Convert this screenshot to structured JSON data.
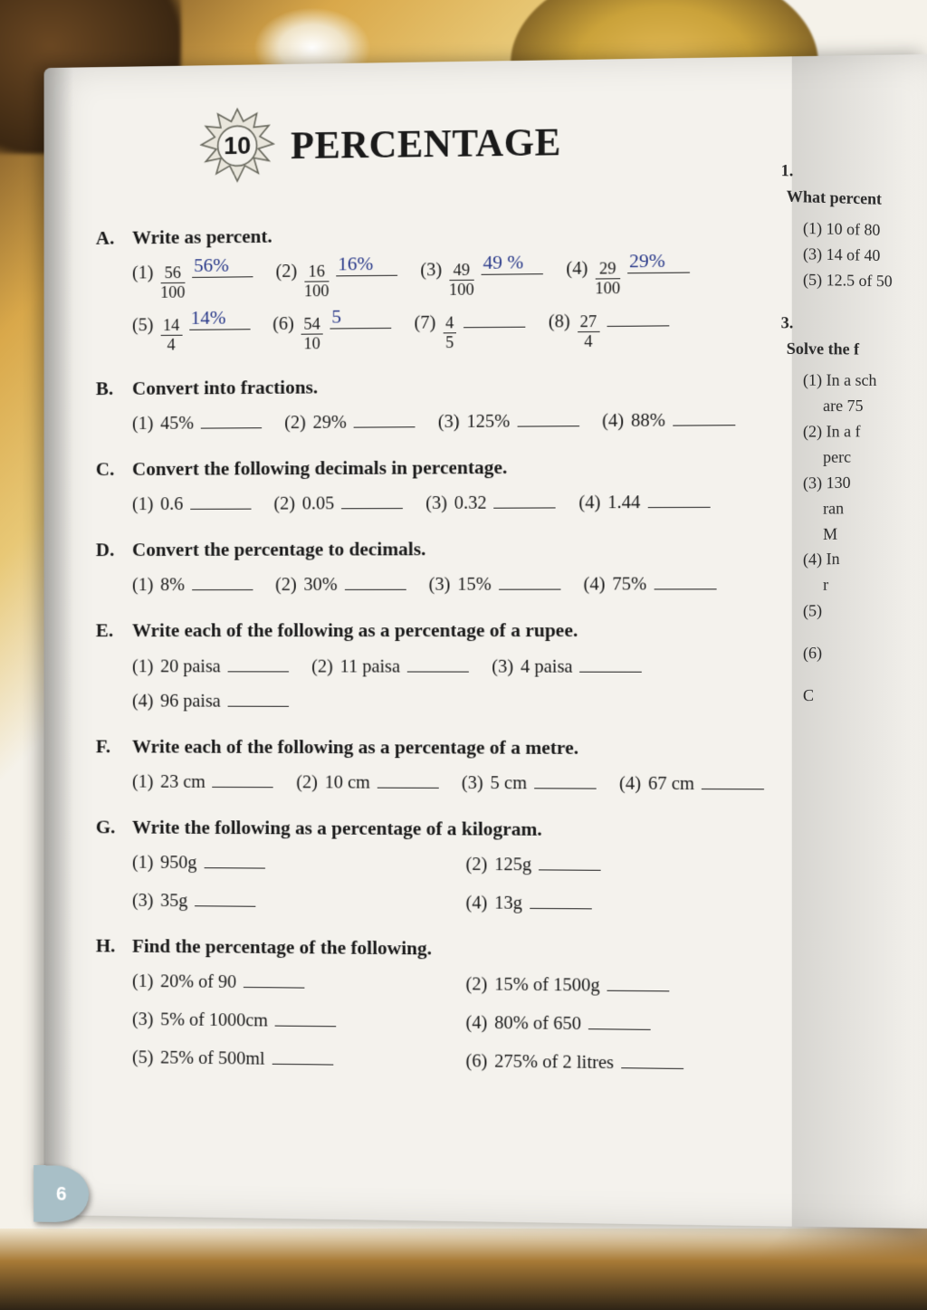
{
  "colors": {
    "paper": "#f4f2ed",
    "ink": "#1a1a1a",
    "handwriting": "#2a3a8a",
    "badge_fill": "#e9e6dc",
    "badge_stroke": "#6b6b60",
    "tab": "#a8bfc7"
  },
  "header": {
    "chapter_number": "10",
    "title": "PERCENTAGE"
  },
  "page_number": "6",
  "right_page": {
    "q1": {
      "title": "What percent",
      "opts": [
        "(1) 10 of 80",
        "(3) 14 of 40",
        "(5) 12.5 of 50"
      ]
    },
    "q3": {
      "title": "Solve the f",
      "opts": [
        "(1) In a sch",
        "are 75",
        "(2) In a f",
        "perc",
        "(3) 130",
        "ran",
        "M",
        "(4) In",
        "r",
        "(5)",
        "(6)",
        "C"
      ]
    }
  },
  "sections": {
    "A": {
      "title": "Write as percent.",
      "items": [
        {
          "n": "(1)",
          "frac": {
            "t": "56",
            "b": "100"
          },
          "hand": "56%"
        },
        {
          "n": "(2)",
          "frac": {
            "t": "16",
            "b": "100"
          },
          "hand": "16%"
        },
        {
          "n": "(3)",
          "frac": {
            "t": "49",
            "b": "100"
          },
          "hand": "49 %"
        },
        {
          "n": "(4)",
          "frac": {
            "t": "29",
            "b": "100"
          },
          "hand": "29%"
        },
        {
          "n": "(5)",
          "frac": {
            "t": "14",
            "b": "4"
          },
          "hand": "14%"
        },
        {
          "n": "(6)",
          "frac": {
            "t": "54",
            "b": "10"
          },
          "hand": "5"
        },
        {
          "n": "(7)",
          "frac": {
            "t": "4",
            "b": "5"
          },
          "hand": ""
        },
        {
          "n": "(8)",
          "frac": {
            "t": "27",
            "b": "4"
          },
          "hand": ""
        }
      ]
    },
    "B": {
      "title": "Convert into fractions.",
      "items": [
        {
          "n": "(1)",
          "text": "45%"
        },
        {
          "n": "(2)",
          "text": "29%"
        },
        {
          "n": "(3)",
          "text": "125%"
        },
        {
          "n": "(4)",
          "text": "88%"
        }
      ]
    },
    "C": {
      "title": "Convert the following decimals in percentage.",
      "items": [
        {
          "n": "(1)",
          "text": "0.6"
        },
        {
          "n": "(2)",
          "text": "0.05"
        },
        {
          "n": "(3)",
          "text": "0.32"
        },
        {
          "n": "(4)",
          "text": "1.44"
        }
      ]
    },
    "D": {
      "title": "Convert the percentage to decimals.",
      "items": [
        {
          "n": "(1)",
          "text": "8%"
        },
        {
          "n": "(2)",
          "text": "30%"
        },
        {
          "n": "(3)",
          "text": "15%"
        },
        {
          "n": "(4)",
          "text": "75%"
        }
      ]
    },
    "E": {
      "title": "Write each of the following as a percentage of a rupee.",
      "items": [
        {
          "n": "(1)",
          "text": "20 paisa"
        },
        {
          "n": "(2)",
          "text": "11 paisa"
        },
        {
          "n": "(3)",
          "text": "4 paisa"
        },
        {
          "n": "(4)",
          "text": "96 paisa"
        }
      ]
    },
    "F": {
      "title": "Write each of the following as a percentage of a metre.",
      "items": [
        {
          "n": "(1)",
          "text": "23 cm"
        },
        {
          "n": "(2)",
          "text": "10 cm"
        },
        {
          "n": "(3)",
          "text": "5 cm"
        },
        {
          "n": "(4)",
          "text": "67 cm"
        }
      ]
    },
    "G": {
      "title": "Write the following as a percentage of a kilogram.",
      "items": [
        {
          "n": "(1)",
          "text": "950g"
        },
        {
          "n": "(2)",
          "text": "125g"
        },
        {
          "n": "(3)",
          "text": "35g"
        },
        {
          "n": "(4)",
          "text": "13g"
        }
      ]
    },
    "H": {
      "title": "Find the percentage of the following.",
      "items": [
        {
          "n": "(1)",
          "text": "20% of 90"
        },
        {
          "n": "(2)",
          "text": "15% of 1500g"
        },
        {
          "n": "(3)",
          "text": "5% of 1000cm"
        },
        {
          "n": "(4)",
          "text": "80% of 650"
        },
        {
          "n": "(5)",
          "text": "25% of 500ml"
        },
        {
          "n": "(6)",
          "text": "275% of 2 litres"
        }
      ]
    }
  }
}
